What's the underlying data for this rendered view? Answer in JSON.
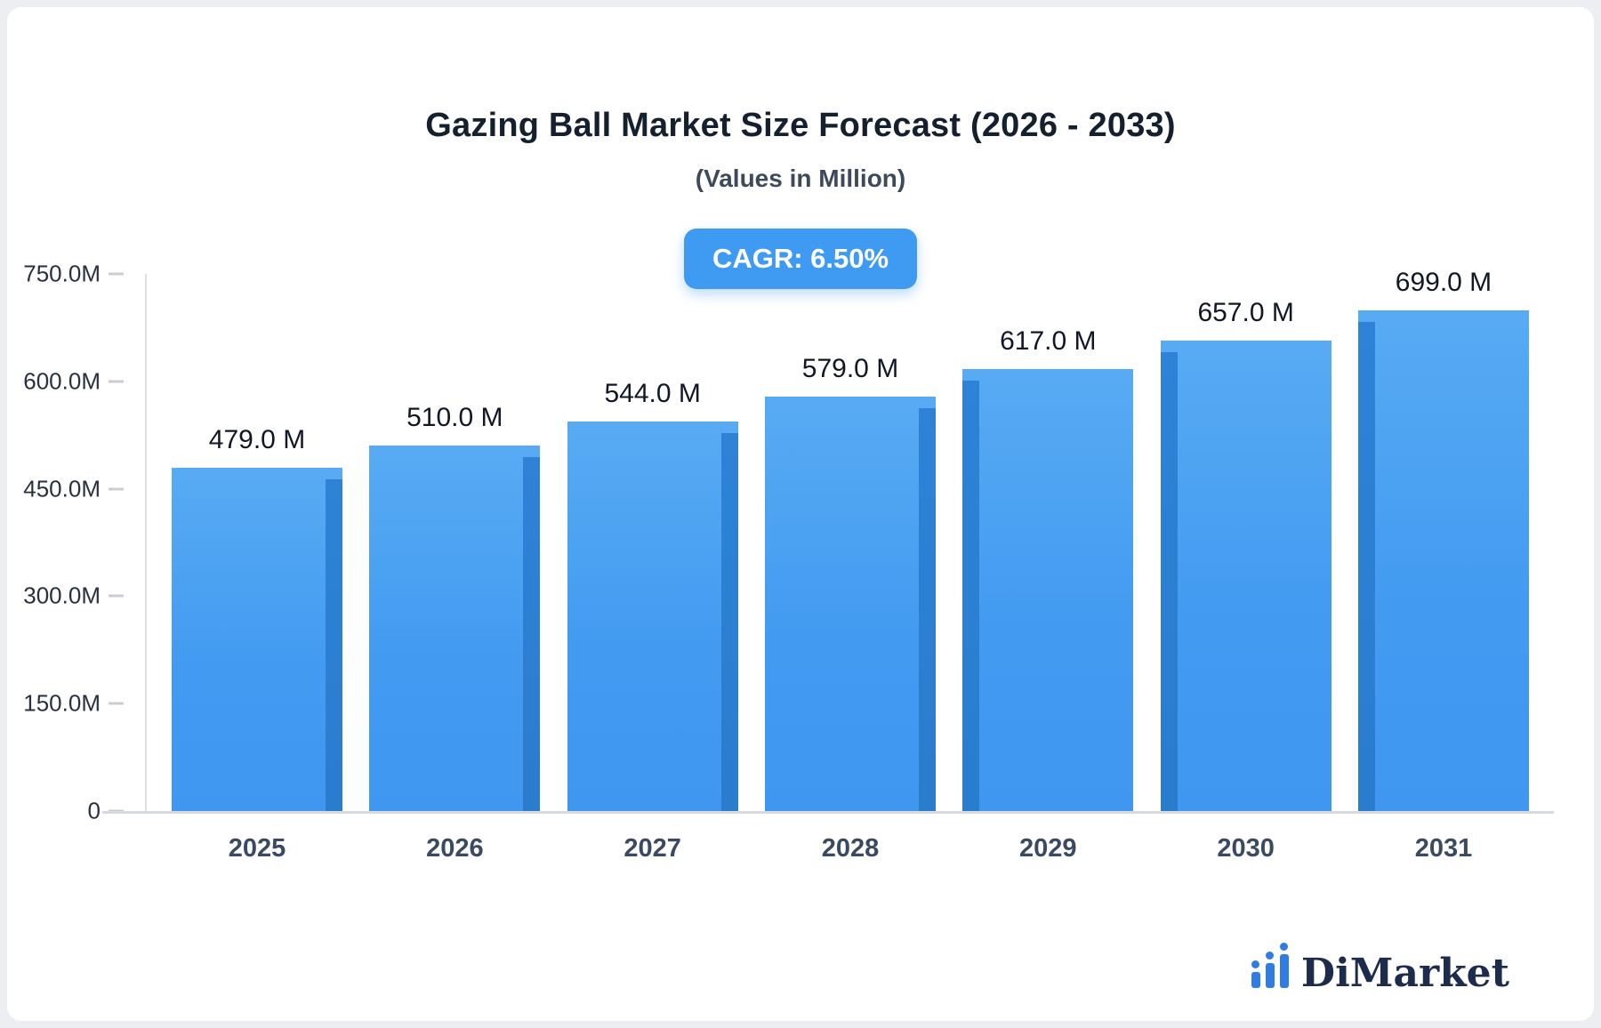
{
  "header": {
    "title": "Gazing Ball Market Size Forecast (2026 - 2033)",
    "subtitle": "(Values in Million)",
    "cagr_label": "CAGR: 6.50%"
  },
  "logo": {
    "text": "DiMarket"
  },
  "chart_data": {
    "type": "bar",
    "title": "Gazing Ball Market Size Forecast (2026 - 2033)",
    "subtitle": "(Values in Million)",
    "categories": [
      "2025",
      "2026",
      "2027",
      "2028",
      "2029",
      "2030",
      "2031"
    ],
    "values": [
      479.0,
      510.0,
      544.0,
      579.0,
      617.0,
      657.0,
      699.0
    ],
    "value_labels": [
      "479.0 M",
      "510.0 M",
      "544.0 M",
      "579.0 M",
      "617.0 M",
      "657.0 M",
      "699.0 M"
    ],
    "unit": "Million",
    "xlabel": "",
    "ylabel": "",
    "ylim": [
      0,
      750
    ],
    "yticks": [
      0,
      150,
      300,
      450,
      600,
      750
    ],
    "ytick_labels": [
      "0",
      "150.0M",
      "300.0M",
      "450.0M",
      "600.0M",
      "750.0M"
    ],
    "grid": false,
    "legend": false,
    "bar_color": "#429af1",
    "bar_side_color": "#2b7ed0",
    "cagr": "6.50%"
  }
}
